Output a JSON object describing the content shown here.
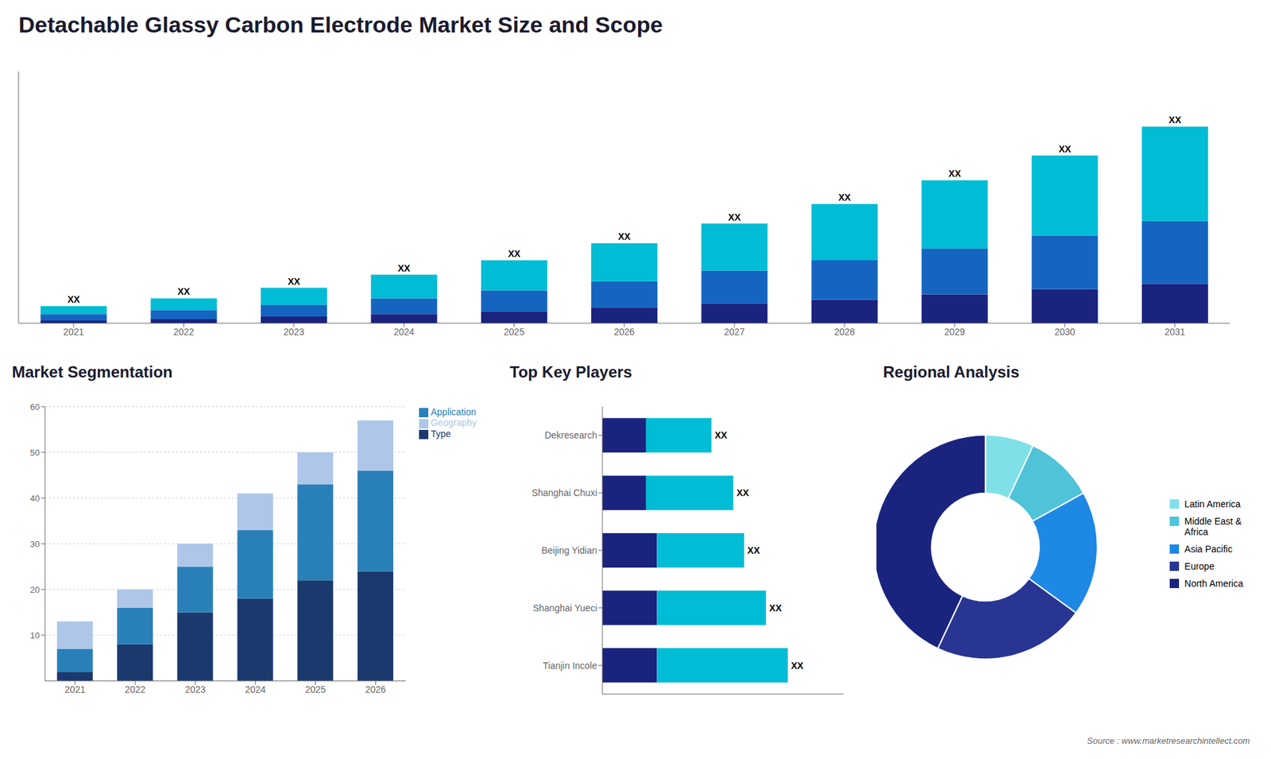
{
  "title": "Detachable Glassy Carbon Electrode Market Size and Scope",
  "annotations": [
    "Source : www.marketresearchintellect.com"
  ],
  "chart_data": [
    {
      "type": "bar",
      "stacked": true,
      "categories": [
        "2021",
        "2022",
        "2023",
        "2024",
        "2025",
        "2026",
        "2027",
        "2028",
        "2029",
        "2030",
        "2031"
      ],
      "series": [
        {
          "color": "#1a237e",
          "values": [
            2,
            3,
            5,
            7,
            9,
            12,
            15,
            18,
            22,
            26,
            30
          ]
        },
        {
          "color": "#1565c0",
          "values": [
            5,
            7,
            9,
            12,
            16,
            20,
            25,
            30,
            35,
            41,
            48
          ]
        },
        {
          "color": "#00bcd4",
          "values": [
            6,
            9,
            13,
            18,
            23,
            29,
            36,
            43,
            52,
            61,
            72
          ],
          "value_labels": [
            "XX",
            "XX",
            "XX",
            "XX",
            "XX",
            "XX",
            "XX",
            "XX",
            "XX",
            "XX",
            "XX"
          ]
        }
      ],
      "ylim": [
        0,
        192
      ],
      "tick_labels": "x"
    },
    {
      "type": "bar",
      "stacked": true,
      "title": "Market Segmentation",
      "categories": [
        "2021",
        "2022",
        "2023",
        "2024",
        "2025",
        "2026"
      ],
      "series": [
        {
          "name": "Type",
          "color": "#1a3a6e",
          "values": [
            2,
            8,
            15,
            18,
            22,
            24
          ]
        },
        {
          "name": "Application",
          "color": "#2980b9",
          "values": [
            5,
            8,
            10,
            15,
            21,
            22
          ]
        },
        {
          "name": "Geography",
          "color": "#aec6e8",
          "values": [
            6,
            4,
            5,
            8,
            7,
            11
          ]
        }
      ],
      "ylim": [
        0,
        60
      ],
      "yticks": [
        10,
        20,
        30,
        40,
        50,
        60
      ],
      "grid": true,
      "legend": "upper right"
    },
    {
      "type": "bar",
      "stacked": true,
      "orientation": "horizontal",
      "title": "Top Key Players",
      "categories": [
        "Dekresearch",
        "Shanghai Chuxi",
        "Beijing Yidian",
        "Shanghai Yueci",
        "Tianjin Incole"
      ],
      "series": [
        {
          "color": "#1a237e",
          "values": [
            2,
            2,
            2.5,
            2.5,
            2.5
          ]
        },
        {
          "color": "#00bcd4",
          "values": [
            3,
            4,
            4,
            5,
            6
          ],
          "value_labels": [
            "XX",
            "XX",
            "XX",
            "XX",
            "XX"
          ]
        }
      ],
      "xlim": [
        0,
        11.05
      ],
      "tick_labels": "y"
    },
    {
      "type": "donut",
      "title": "Regional Analysis",
      "categories": [
        "Latin America",
        "Middle East &\nAfrica",
        "Asia Pacific",
        "Europe",
        "North America"
      ],
      "values": [
        7,
        10,
        18,
        22,
        43
      ],
      "colors": [
        "#7fe0e8",
        "#4fc3d8",
        "#1e88e5",
        "#283593",
        "#1a237e"
      ],
      "legend": "right"
    }
  ]
}
